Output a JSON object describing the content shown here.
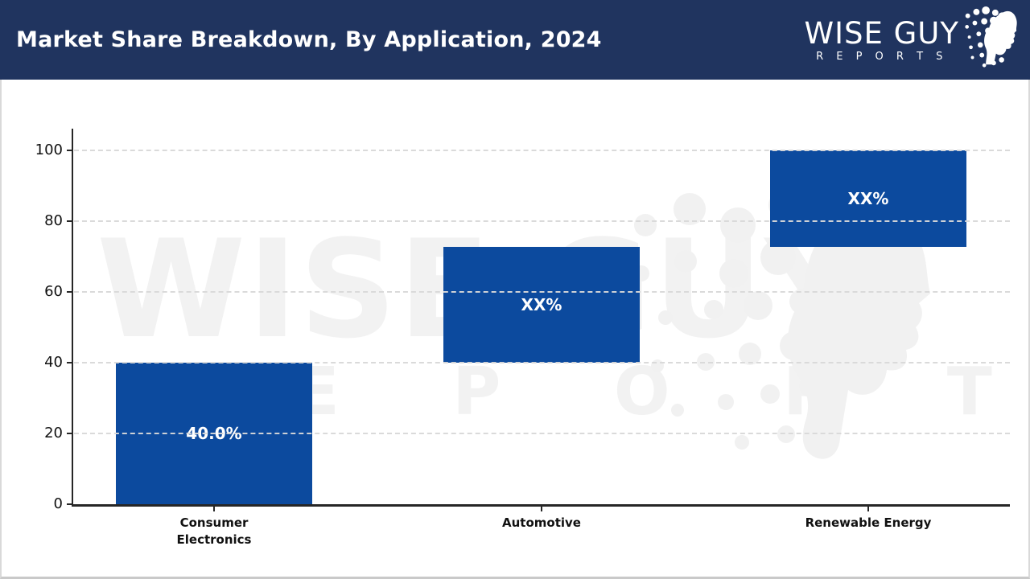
{
  "header": {
    "title": "Market Share Breakdown, By Application, 2024",
    "logo": {
      "title": "WISE GUY",
      "subtitle": "R E P O R T S"
    }
  },
  "watermark": {
    "line1": "WISE GUY",
    "line2": "R E P O R T S"
  },
  "colors": {
    "header_bg": "#20345f",
    "bar": "#0c4a9e",
    "bar_label": "#ffffff",
    "grid": "#d9d9d9",
    "axis": "#262626",
    "text": "#111111",
    "watermark": "#f2f2f2"
  },
  "chart_data": {
    "type": "bar",
    "subtype": "stacked-waterfall",
    "title": "Market Share Breakdown, By Application, 2024",
    "unit": "%",
    "categories": [
      "Consumer Electronics",
      "Automotive",
      "Renewable Energy"
    ],
    "categories_display": [
      "Consumer\nElectronics",
      "Automotive",
      "Renewable Energy"
    ],
    "segments": [
      {
        "category": "Consumer Electronics",
        "start": 0,
        "end": 40,
        "value": 40.0,
        "label": "40.0%"
      },
      {
        "category": "Automotive",
        "start": 40,
        "end": 72.7,
        "value": 32.7,
        "label": "XX%"
      },
      {
        "category": "Renewable Energy",
        "start": 72.7,
        "end": 100,
        "value": 27.3,
        "label": "XX%"
      }
    ],
    "yticks": [
      0,
      20,
      40,
      60,
      80,
      100
    ],
    "ylim": [
      0,
      106
    ],
    "xlabel": "",
    "ylabel": "",
    "grid": "horizontal-dashed",
    "legend": "none"
  }
}
